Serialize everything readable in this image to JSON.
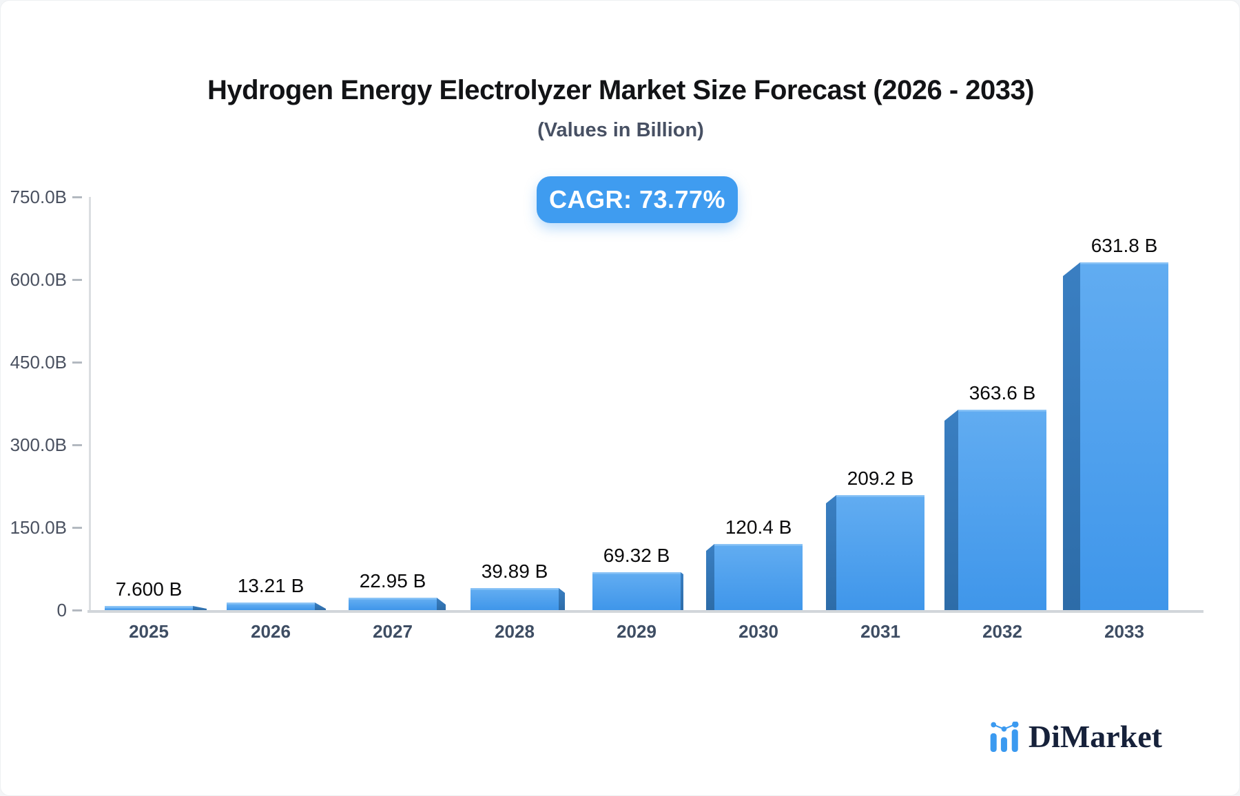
{
  "header": {
    "title": "Hydrogen Energy Electrolyzer Market Size Forecast (2026 - 2033)",
    "subtitle": "(Values in Billion)",
    "cagr_label": "CAGR: 73.77%"
  },
  "branding": {
    "name": "DiMarket",
    "icon": "dimarket-bars-logo-icon"
  },
  "colors": {
    "accent_blue": "#3f9cf0",
    "bar_face_highlight": "#8ac3f6",
    "bar_face_top": "#61acf1",
    "bar_face_bottom": "#3f96ea",
    "bar_side_top": "#3a7fc2",
    "bar_side_bottom": "#2d6ca8",
    "axis_line": "#d2d6da",
    "y_tick_label": "#4a5160",
    "year_label": "#3e4d63",
    "value_label": "#0b0b0c",
    "logo_text": "#16213a",
    "logo_icon_blue": "#3b9af0"
  },
  "chart_data": {
    "type": "bar",
    "title": "Hydrogen Energy Electrolyzer Market Size Forecast (2026 - 2033)",
    "subtitle": "(Values in Billion)",
    "cagr_percent": 73.77,
    "unit": "B",
    "categories": [
      "2025",
      "2026",
      "2027",
      "2028",
      "2029",
      "2030",
      "2031",
      "2032",
      "2033"
    ],
    "values": [
      7.6,
      13.21,
      22.95,
      39.89,
      69.32,
      120.4,
      209.2,
      363.6,
      631.8
    ],
    "value_labels": [
      "7.600 B",
      "13.21 B",
      "22.95 B",
      "39.89 B",
      "69.32 B",
      "120.4 B",
      "209.2 B",
      "363.6 B",
      "631.8 B"
    ],
    "y_ticks": {
      "values": [
        0,
        150,
        300,
        450,
        600,
        750
      ],
      "labels": [
        "0",
        "150.0B",
        "300.0B",
        "450.0B",
        "600.0B",
        "750.0B"
      ]
    },
    "ylim": [
      0,
      750
    ],
    "xlabel": "",
    "ylabel": "",
    "grid": false,
    "legend": false,
    "style": "3d-perspective-blue"
  }
}
